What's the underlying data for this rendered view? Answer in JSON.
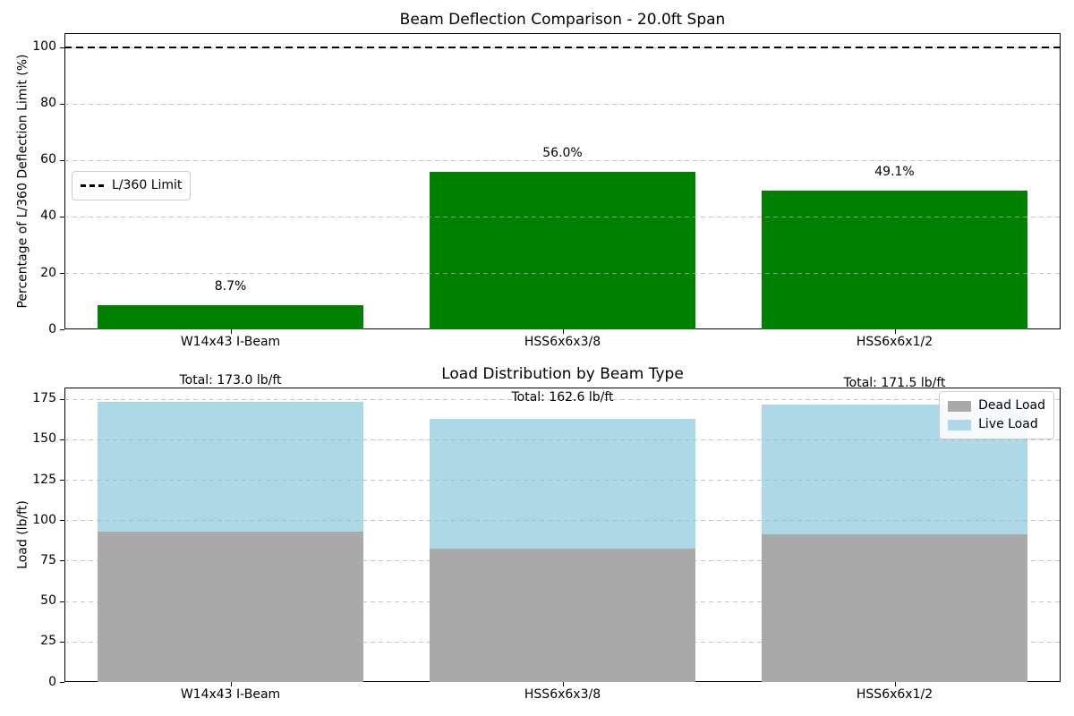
{
  "figure": {
    "background": "#ffffff"
  },
  "chart_data": [
    {
      "type": "bar",
      "title": "Beam Deflection Comparison - 20.0ft Span",
      "xlabel": "",
      "ylabel": "Percentage of L/360 Deflection Limit (%)",
      "categories": [
        "W14x43 I-Beam",
        "HSS6x6x3/8",
        "HSS6x6x1/2"
      ],
      "values": [
        8.7,
        56.0,
        49.1
      ],
      "bar_labels": [
        "8.7%",
        "56.0%",
        "49.1%"
      ],
      "bar_color": "#008000",
      "yticks": [
        0,
        20,
        40,
        60,
        80,
        100
      ],
      "ylim": [
        0,
        105
      ],
      "grid": true,
      "grid_style": "dashed",
      "reference_line": {
        "value": 100,
        "label": "L/360 Limit",
        "color": "#000000",
        "style": "dashed"
      },
      "legend": {
        "position": "center-left",
        "entries": [
          {
            "label": "L/360 Limit",
            "swatch": "dashed-line",
            "color": "#000000"
          }
        ]
      }
    },
    {
      "type": "stacked-bar",
      "title": "Load Distribution by Beam Type",
      "xlabel": "",
      "ylabel": "Load (lb/ft)",
      "categories": [
        "W14x43 I-Beam",
        "HSS6x6x3/8",
        "HSS6x6x1/2"
      ],
      "series": [
        {
          "name": "Dead Load",
          "values": [
            93.0,
            82.6,
            91.5
          ],
          "color": "#a9a9a9"
        },
        {
          "name": "Live Load",
          "values": [
            80.0,
            80.0,
            80.0
          ],
          "color": "#add8e6"
        }
      ],
      "totals": [
        173.0,
        162.6,
        171.5
      ],
      "total_labels": [
        "Total: 173.0 lb/ft",
        "Total: 162.6 lb/ft",
        "Total: 171.5 lb/ft"
      ],
      "yticks": [
        0,
        25,
        50,
        75,
        100,
        125,
        150,
        175
      ],
      "ylim": [
        0,
        182
      ],
      "grid": true,
      "grid_style": "dashed",
      "legend": {
        "position": "top-right",
        "entries": [
          {
            "label": "Dead Load",
            "swatch": "patch",
            "color": "#a9a9a9"
          },
          {
            "label": "Live Load",
            "swatch": "patch",
            "color": "#add8e6"
          }
        ]
      }
    }
  ]
}
